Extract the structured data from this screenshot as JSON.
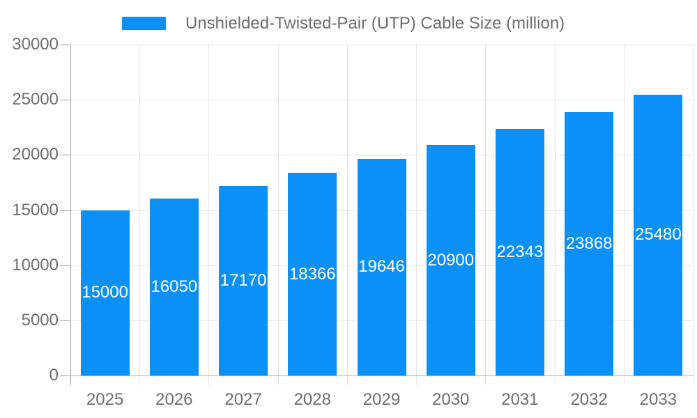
{
  "chart_data": {
    "type": "bar",
    "title": "Unshielded-Twisted-Pair (UTP) Cable Size (million)",
    "legend": {
      "label": "Unshielded-Twisted-Pair (UTP) Cable Size (million)",
      "position": "top"
    },
    "categories": [
      "2025",
      "2026",
      "2027",
      "2028",
      "2029",
      "2030",
      "2031",
      "2032",
      "2033"
    ],
    "values": [
      15000,
      16050,
      17170,
      18366,
      19646,
      20900,
      22343,
      23868,
      25480
    ],
    "xlabel": "",
    "ylabel": "",
    "ylim": [
      0,
      30000
    ],
    "yticks": [
      0,
      5000,
      10000,
      15000,
      20000,
      25000,
      30000
    ],
    "grid": true,
    "value_labels_inside_bars": true,
    "colors": {
      "bar": "#0b90f8",
      "value_label": "#ffffff",
      "axis_text": "#6e6e6e",
      "gridline": "#e6e6e6",
      "axis_line": "#9e9e9e",
      "baseline": "#b0b0b0",
      "background": "#ffffff"
    }
  }
}
